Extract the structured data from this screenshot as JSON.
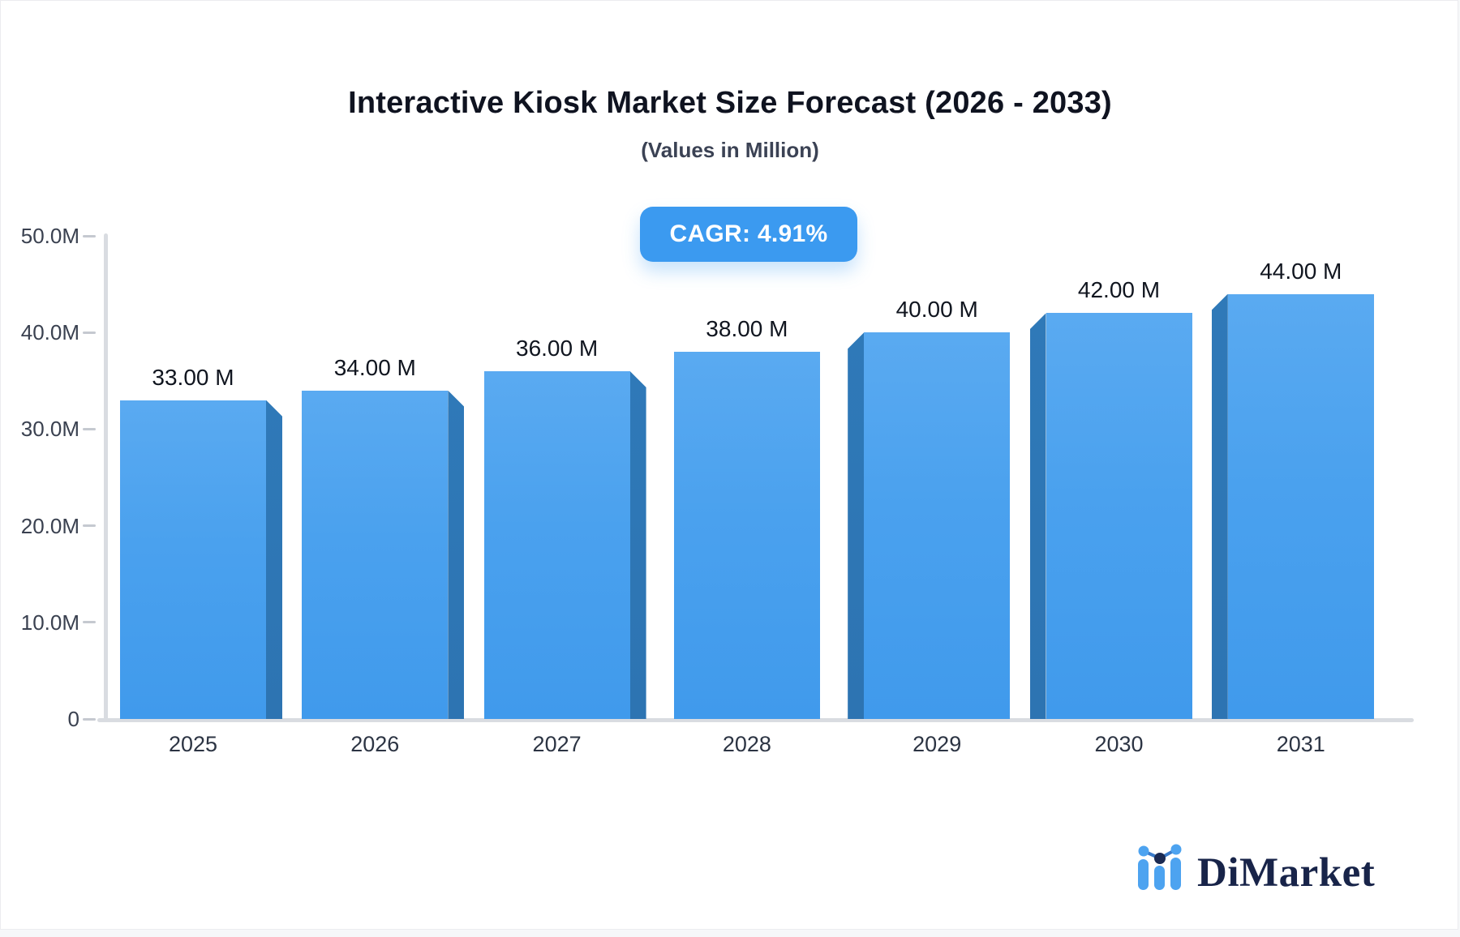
{
  "header": {
    "title": "Interactive Kiosk Market Size Forecast (2026 - 2033)",
    "subtitle": "(Values in Million)",
    "cagr_label": "CAGR: 4.91%"
  },
  "chart_data": {
    "type": "bar",
    "title": "Interactive Kiosk Market Size Forecast (2026 - 2033)",
    "subtitle": "(Values in Million)",
    "cagr": "4.91%",
    "categories": [
      "2025",
      "2026",
      "2027",
      "2028",
      "2029",
      "2030",
      "2031"
    ],
    "values": [
      33,
      34,
      36,
      38,
      40,
      42,
      44
    ],
    "value_labels": [
      "33.00 M",
      "34.00 M",
      "36.00 M",
      "38.00 M",
      "40.00 M",
      "42.00 M",
      "44.00 M"
    ],
    "unit": "Million",
    "xlabel": "",
    "ylabel": "",
    "ylim": [
      0,
      50
    ],
    "y_tick_values": [
      0,
      10,
      20,
      30,
      40,
      50
    ],
    "y_tick_labels": [
      "0",
      "10.0M",
      "20.0M",
      "30.0M",
      "40.0M",
      "50.0M"
    ],
    "grid": false,
    "legend_position": "none",
    "colors": {
      "bar_face": "#46a0ee",
      "bar_side": "#2d76b5",
      "badge_background": "#3b9af0",
      "axis_line": "#d9dce1",
      "tick_text": "#3a4150",
      "title_text": "#0f1320"
    }
  },
  "branding": {
    "logo_text": "DiMarket",
    "logo_icon": "mini-bar-chart-icon",
    "logo_text_color": "#182449",
    "logo_icon_color": "#4da3f0"
  }
}
